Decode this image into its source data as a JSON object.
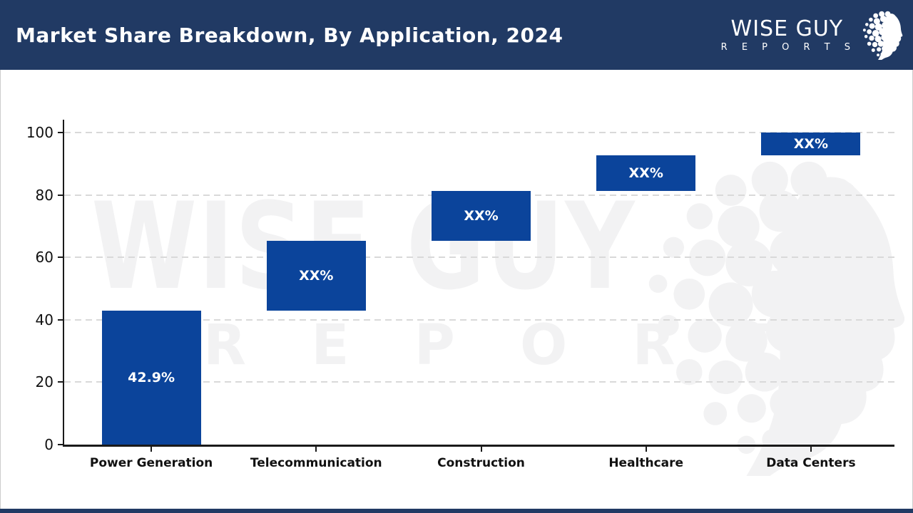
{
  "header": {
    "title": "Market Share Breakdown, By Application, 2024",
    "logo": {
      "line1": "WISE GUY",
      "line2": "R E P O R T S"
    }
  },
  "watermark": {
    "line1": "WISE GUY",
    "line2": "R E P O R T S"
  },
  "colors": {
    "header_bg": "#213A64",
    "footer_bg": "#213A64",
    "title_text": "#FFFFFF",
    "bar_fill": "#0B449B",
    "bar_label_text": "#FFFFFF",
    "axis": "#1A1A1A",
    "grid": "#D9D9D9",
    "tick_label": "#111111",
    "watermark": "#F2F2F3",
    "frame_border": "#CCCCCC"
  },
  "chart_data": {
    "type": "bar",
    "subtype": "floating-waterfall",
    "title": "Market Share Breakdown, By Application, 2024",
    "categories": [
      "Power Generation",
      "Telecommunication",
      "Construction",
      "Healthcare",
      "Data Centers"
    ],
    "segments": [
      {
        "category": "Power Generation",
        "start": 0,
        "end": 42.9,
        "label": "42.9%"
      },
      {
        "category": "Telecommunication",
        "start": 42.9,
        "end": 65.4,
        "label": "XX%"
      },
      {
        "category": "Construction",
        "start": 65.4,
        "end": 81.2,
        "label": "XX%"
      },
      {
        "category": "Healthcare",
        "start": 81.2,
        "end": 92.6,
        "label": "XX%"
      },
      {
        "category": "Data Centers",
        "start": 92.6,
        "end": 100,
        "label": "XX%"
      }
    ],
    "xlabel": "",
    "ylabel": "",
    "ylim": [
      0,
      100
    ],
    "yticks": [
      0,
      20,
      40,
      60,
      80,
      100
    ],
    "grid": "dashed-horizontal",
    "legend": false
  }
}
